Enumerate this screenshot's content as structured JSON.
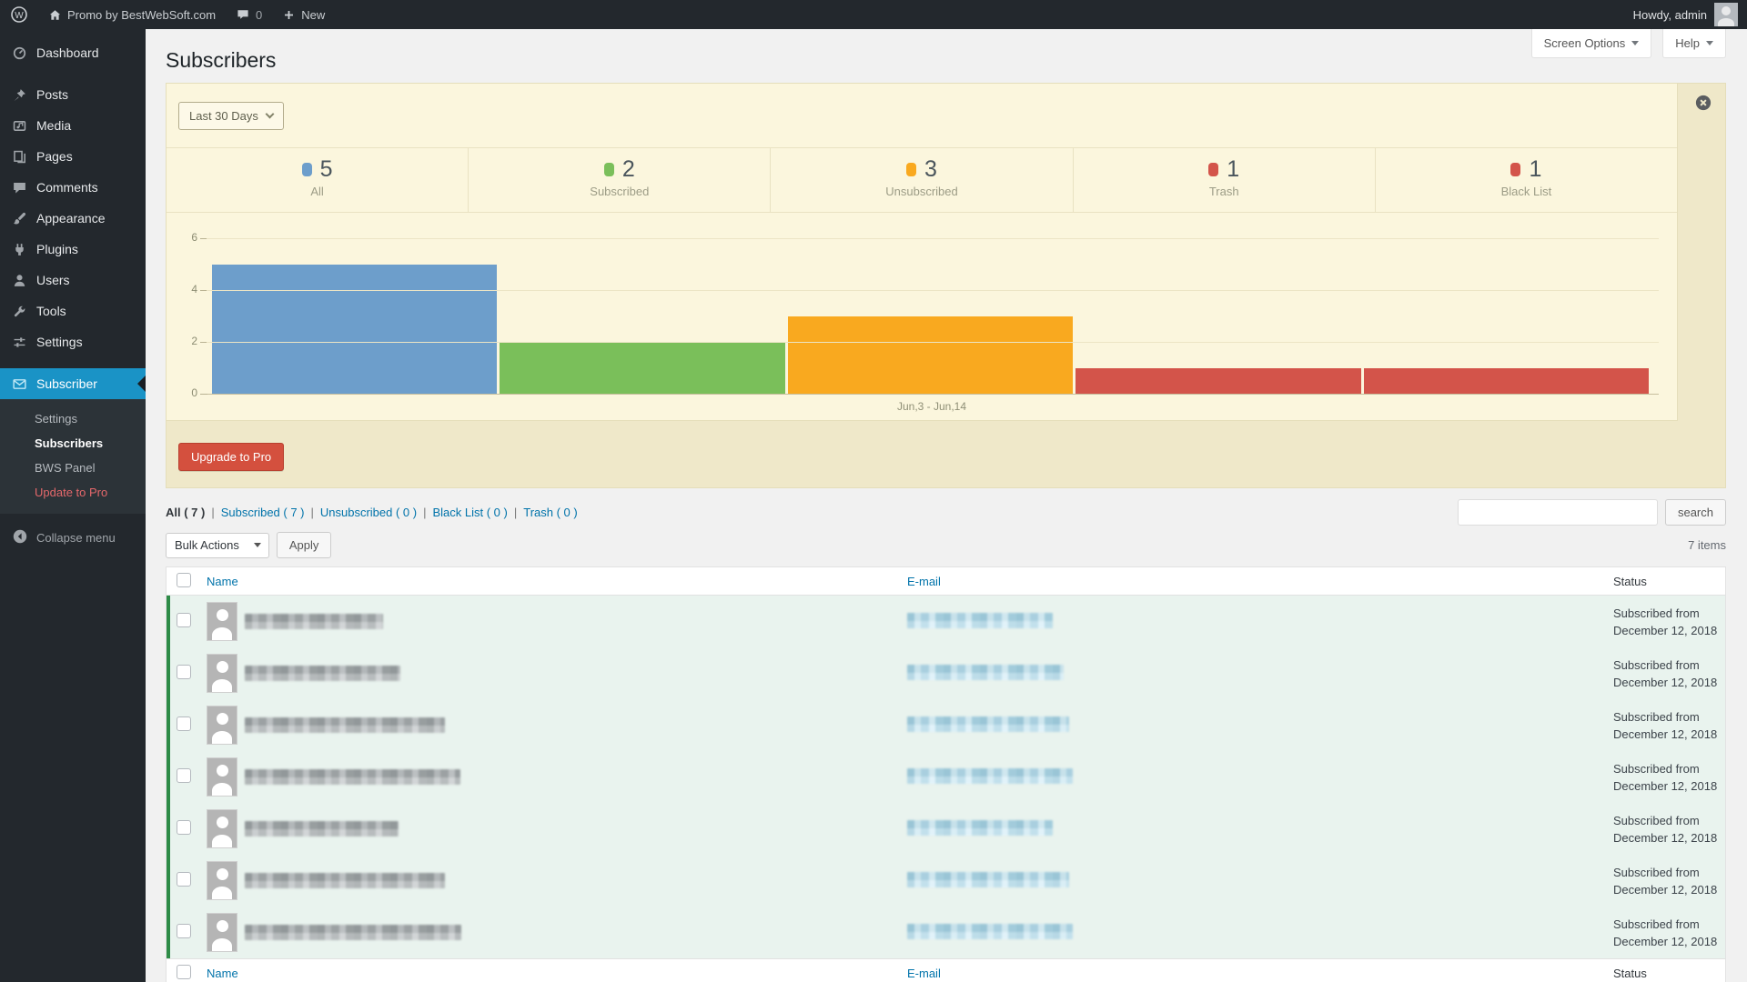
{
  "admin_bar": {
    "site_name": "Promo by BestWebSoft.com",
    "comments_count": "0",
    "new_label": "New",
    "howdy_text": "Howdy, admin"
  },
  "sidebar": {
    "items": [
      {
        "label": "Dashboard",
        "icon": "dashboard-icon"
      },
      {
        "label": "Posts",
        "icon": "posts-icon",
        "separator_before": true
      },
      {
        "label": "Media",
        "icon": "media-icon"
      },
      {
        "label": "Pages",
        "icon": "pages-icon"
      },
      {
        "label": "Comments",
        "icon": "comments-icon"
      },
      {
        "label": "Appearance",
        "icon": "appearance-icon"
      },
      {
        "label": "Plugins",
        "icon": "plugins-icon"
      },
      {
        "label": "Users",
        "icon": "users-icon"
      },
      {
        "label": "Tools",
        "icon": "tools-icon"
      },
      {
        "label": "Settings",
        "icon": "settings-icon"
      },
      {
        "label": "Subscriber",
        "icon": "subscriber-icon",
        "active": true,
        "separator_before": true
      }
    ],
    "submenu": [
      {
        "label": "Settings"
      },
      {
        "label": "Subscribers",
        "current": true
      },
      {
        "label": "BWS Panel"
      },
      {
        "label": "Update to Pro",
        "highlight": "#e5686b"
      }
    ],
    "collapse_label": "Collapse menu"
  },
  "page": {
    "title": "Subscribers",
    "screen_options_label": "Screen Options",
    "help_label": "Help"
  },
  "panel": {
    "period_label": "Last 30 Days",
    "stats": [
      {
        "value": "5",
        "label": "All",
        "color": "#6d9ecb"
      },
      {
        "value": "2",
        "label": "Subscribed",
        "color": "#7abf5a"
      },
      {
        "value": "3",
        "label": "Unsubscribed",
        "color": "#f9a91f"
      },
      {
        "value": "1",
        "label": "Trash",
        "color": "#d3544a"
      },
      {
        "value": "1",
        "label": "Black List",
        "color": "#d3544a"
      }
    ],
    "upgrade_label": "Upgrade to Pro"
  },
  "chart_data": {
    "type": "bar",
    "categories": [
      "All",
      "Subscribed",
      "Unsubscribed",
      "Trash",
      "Black List"
    ],
    "values": [
      5,
      2,
      3,
      1,
      1
    ],
    "colors": [
      "#6d9ecb",
      "#7abf5a",
      "#f9a91f",
      "#d3544a",
      "#d3544a"
    ],
    "yticks": [
      0,
      2,
      4,
      6
    ],
    "ylim": [
      0,
      6.5
    ],
    "xlabel": "Jun,3 - Jun,14",
    "grid": true,
    "legend_position": "top"
  },
  "filters": [
    {
      "label": "All ( 7 )",
      "current": true
    },
    {
      "label": "Subscribed ( 7 )"
    },
    {
      "label": "Unsubscribed ( 0 )"
    },
    {
      "label": "Black List ( 0 )"
    },
    {
      "label": "Trash ( 0 )"
    }
  ],
  "toolbar": {
    "bulk_actions_label": "Bulk Actions",
    "apply_label": "Apply",
    "items_count": "7 items",
    "search_button_label": "search",
    "search_value": ""
  },
  "table": {
    "columns": {
      "name": "Name",
      "email": "E-mail",
      "status": "Status"
    },
    "rows": [
      {
        "status_line1": "Subscribed from",
        "status_line2": "December 12, 2018",
        "name_redacted_width": 152,
        "email_redacted_width": 160
      },
      {
        "status_line1": "Subscribed from",
        "status_line2": "December 12, 2018",
        "name_redacted_width": 171,
        "email_redacted_width": 172
      },
      {
        "status_line1": "Subscribed from",
        "status_line2": "December 12, 2018",
        "name_redacted_width": 220,
        "email_redacted_width": 178
      },
      {
        "status_line1": "Subscribed from",
        "status_line2": "December 12, 2018",
        "name_redacted_width": 237,
        "email_redacted_width": 182
      },
      {
        "status_line1": "Subscribed from",
        "status_line2": "December 12, 2018",
        "name_redacted_width": 169,
        "email_redacted_width": 160
      },
      {
        "status_line1": "Subscribed from",
        "status_line2": "December 12, 2018",
        "name_redacted_width": 220,
        "email_redacted_width": 178
      },
      {
        "status_line1": "Subscribed from",
        "status_line2": "December 12, 2018",
        "name_redacted_width": 238,
        "email_redacted_width": 182
      }
    ]
  }
}
